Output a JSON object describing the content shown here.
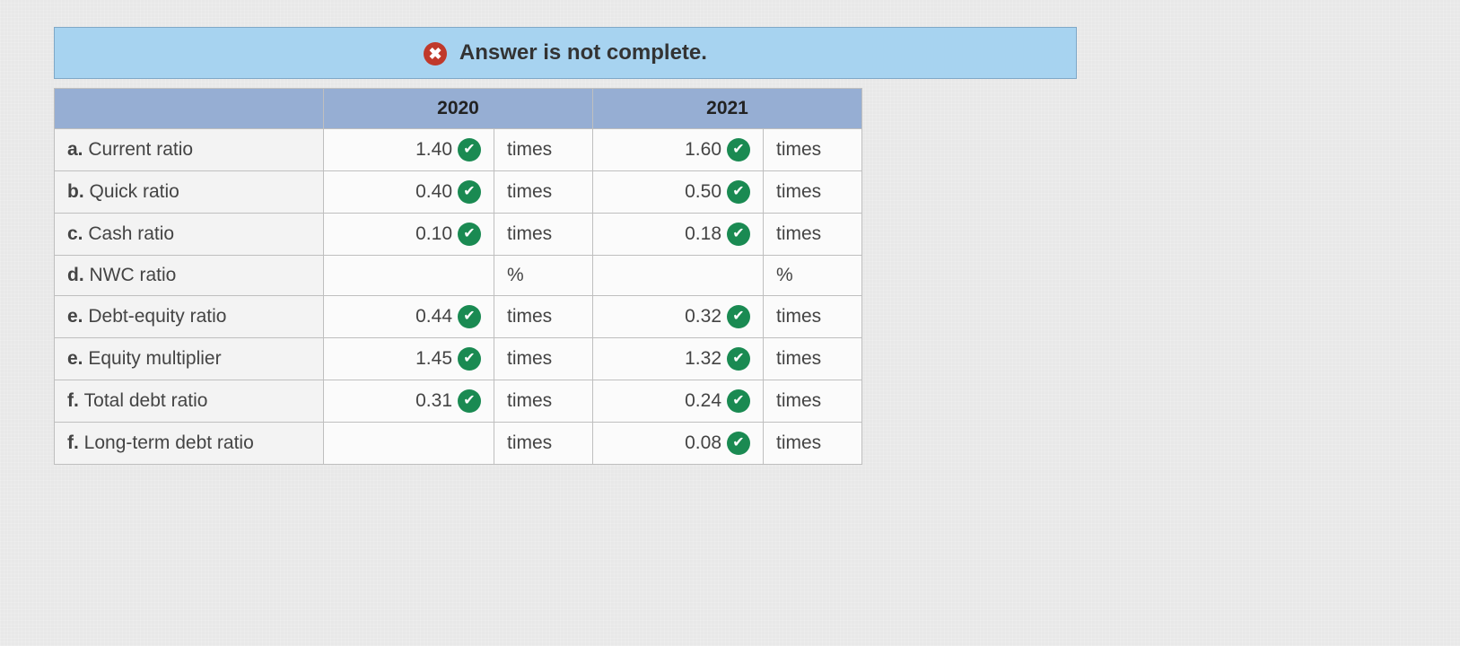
{
  "banner": {
    "icon_name": "x-circle-icon",
    "icon_glyph": "✖",
    "text": "Answer is not complete.",
    "bg_color": "#a7d3f0"
  },
  "table": {
    "header_bg": "#96aed3",
    "years": [
      "2020",
      "2021"
    ],
    "check_glyph": "✔",
    "rows": [
      {
        "letter": "a.",
        "name": "Current ratio",
        "y2020": {
          "value": "1.40",
          "correct": true,
          "unit": "times"
        },
        "y2021": {
          "value": "1.60",
          "correct": true,
          "unit": "times"
        }
      },
      {
        "letter": "b.",
        "name": "Quick ratio",
        "y2020": {
          "value": "0.40",
          "correct": true,
          "unit": "times"
        },
        "y2021": {
          "value": "0.50",
          "correct": true,
          "unit": "times"
        }
      },
      {
        "letter": "c.",
        "name": "Cash ratio",
        "y2020": {
          "value": "0.10",
          "correct": true,
          "unit": "times"
        },
        "y2021": {
          "value": "0.18",
          "correct": true,
          "unit": "times"
        }
      },
      {
        "letter": "d.",
        "name": "NWC ratio",
        "y2020": {
          "value": "",
          "correct": false,
          "unit": "%"
        },
        "y2021": {
          "value": "",
          "correct": false,
          "unit": "%"
        }
      },
      {
        "letter": "e.",
        "name": "Debt-equity ratio",
        "y2020": {
          "value": "0.44",
          "correct": true,
          "unit": "times"
        },
        "y2021": {
          "value": "0.32",
          "correct": true,
          "unit": "times"
        }
      },
      {
        "letter": "e.",
        "name": "Equity multiplier",
        "y2020": {
          "value": "1.45",
          "correct": true,
          "unit": "times"
        },
        "y2021": {
          "value": "1.32",
          "correct": true,
          "unit": "times"
        }
      },
      {
        "letter": "f.",
        "name": "Total debt ratio",
        "y2020": {
          "value": "0.31",
          "correct": true,
          "unit": "times"
        },
        "y2021": {
          "value": "0.24",
          "correct": true,
          "unit": "times"
        }
      },
      {
        "letter": "f.",
        "name": "Long-term debt ratio",
        "y2020": {
          "value": "",
          "correct": false,
          "unit": "times"
        },
        "y2021": {
          "value": "0.08",
          "correct": true,
          "unit": "times"
        }
      }
    ]
  },
  "colors": {
    "check_bg": "#1a8a52",
    "x_bg": "#c0392b",
    "border": "#bfbfbf"
  }
}
